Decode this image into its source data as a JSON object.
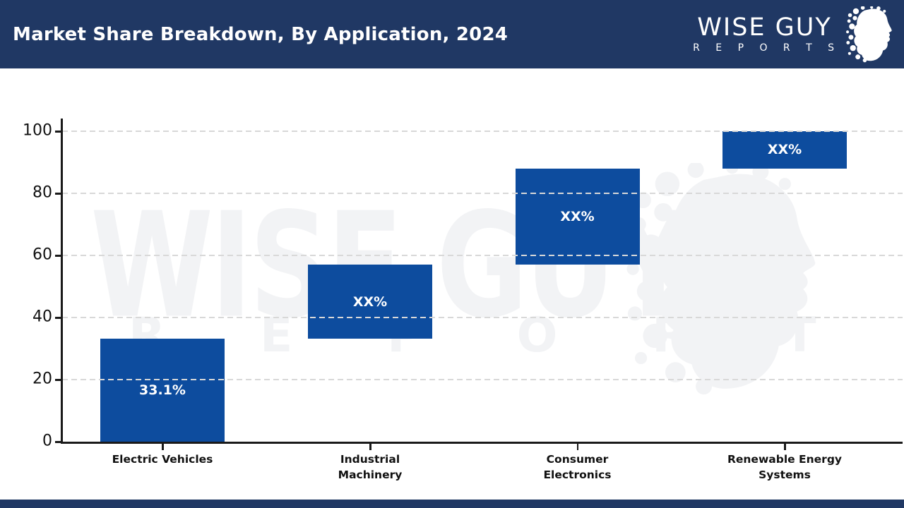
{
  "header": {
    "title": "Market Share Breakdown, By Application, 2024",
    "logo": {
      "line1": "WISE GUY",
      "line2": "R E P O R T S"
    }
  },
  "watermark": {
    "line1": "WISE GUY",
    "line2": "R E P O R T S"
  },
  "colors": {
    "header_bg": "#203864",
    "footer_bg": "#203864",
    "bar": "#0d4c9e",
    "grid": "#d8d8d8",
    "axis": "#1a1a1a",
    "bar_label_text": "#ffffff",
    "watermark": "#f2f3f5"
  },
  "chart_data": {
    "type": "bar",
    "subtype": "waterfall",
    "title": "Market Share Breakdown, By Application, 2024",
    "categories": [
      "Electric Vehicles",
      "Industrial Machinery",
      "Consumer Electronics",
      "Renewable Energy Systems"
    ],
    "segments": [
      {
        "category": "Electric Vehicles",
        "lines": [
          "Electric Vehicles"
        ],
        "start": 0,
        "end": 33.1,
        "label": "33.1%"
      },
      {
        "category": "Industrial Machinery",
        "lines": [
          "Industrial",
          "Machinery"
        ],
        "start": 33.1,
        "end": 57,
        "label": "XX%"
      },
      {
        "category": "Consumer Electronics",
        "lines": [
          "Consumer",
          "Electronics"
        ],
        "start": 57,
        "end": 88,
        "label": "XX%"
      },
      {
        "category": "Renewable Energy Systems",
        "lines": [
          "Renewable Energy",
          "Systems"
        ],
        "start": 88,
        "end": 100,
        "label": "XX%"
      }
    ],
    "ylim": [
      0,
      100
    ],
    "yticks": [
      0,
      20,
      40,
      60,
      80,
      100
    ],
    "grid": "horizontal-dashed",
    "legend": "none",
    "xlabel": "",
    "ylabel": ""
  }
}
